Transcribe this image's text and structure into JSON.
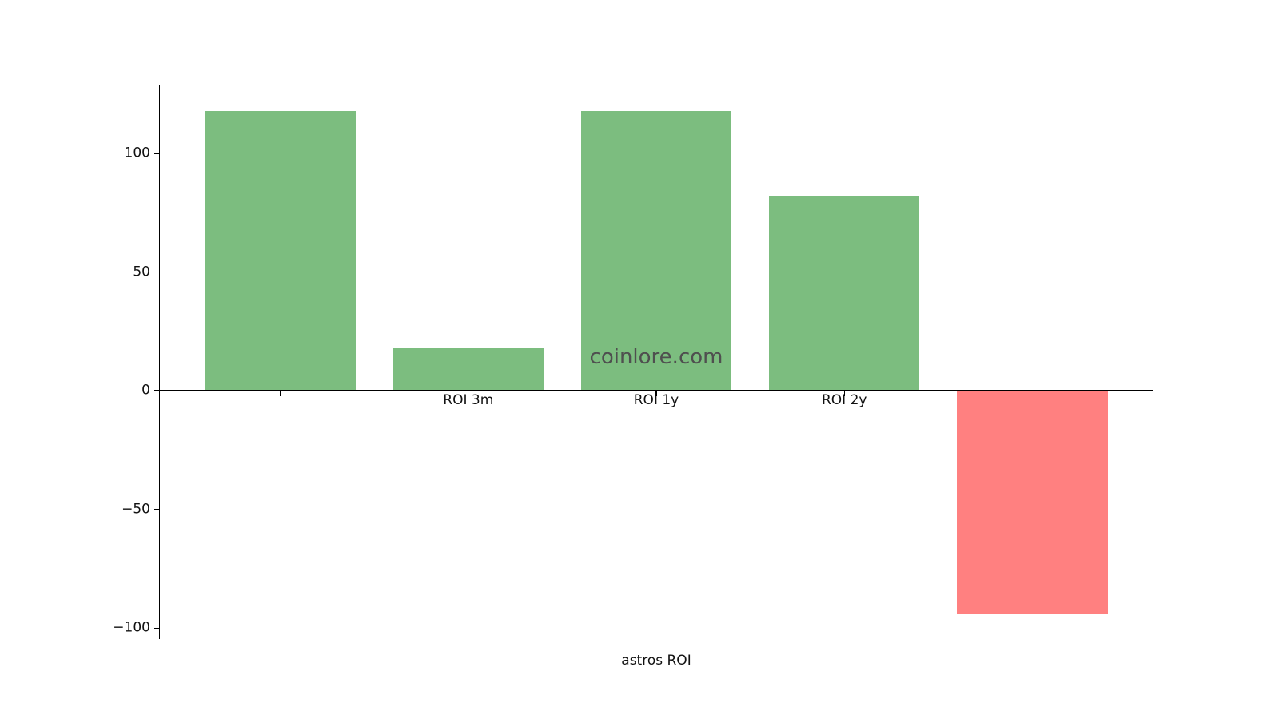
{
  "chart_data": {
    "type": "bar",
    "categories": [
      "",
      "ROI 3m",
      "ROI 1y",
      "ROI 2y",
      ""
    ],
    "values": [
      118,
      18,
      118,
      82,
      -94
    ],
    "title": "",
    "xlabel": "astros ROI",
    "ylabel": "",
    "yticks": [
      100,
      50,
      0,
      -50,
      -100
    ],
    "xtick_positions": [
      0,
      1,
      2,
      3
    ],
    "ylim": [
      -104.6,
      128.6
    ],
    "xlim": [
      -0.64,
      4.64
    ],
    "bar_width_units": 0.8,
    "grid": false,
    "legend": false,
    "colors": {
      "positive_bar": "#7cbd7f",
      "negative_bar": "#ff8080",
      "axis": "#000000",
      "tick_text": "#111111",
      "watermark_text": "#4f4f4f"
    },
    "watermark": "coinlore.com"
  }
}
